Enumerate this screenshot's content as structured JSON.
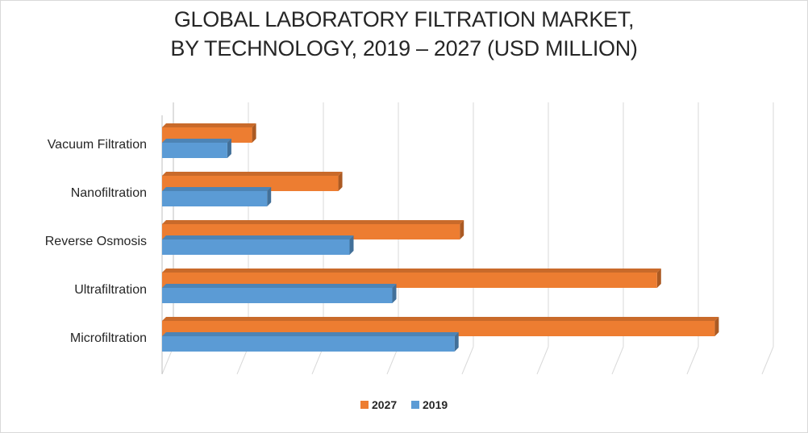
{
  "chart_data": {
    "type": "bar",
    "orientation": "horizontal",
    "title_lines": [
      "GLOBAL LABORATORY FILTRATION MARKET,",
      "BY TECHNOLOGY, 2019 – 2027 (USD MILLION)"
    ],
    "categories": [
      "Vacuum Filtration",
      "Nanofiltration",
      "Reverse Osmosis",
      "Ultrafiltration",
      "Microfiltration"
    ],
    "series": [
      {
        "name": "2027",
        "color": "#ed7d31",
        "values": [
          1.2,
          2.35,
          3.97,
          6.6,
          7.37
        ]
      },
      {
        "name": "2019",
        "color": "#5b9bd5",
        "values": [
          0.87,
          1.4,
          2.5,
          3.07,
          3.9
        ]
      }
    ],
    "legend_order": [
      "2027",
      "2019"
    ],
    "legend_position": "bottom",
    "xlim": [
      0,
      8
    ],
    "gridlines": true,
    "value_axis_labels": false,
    "style": "3d"
  }
}
